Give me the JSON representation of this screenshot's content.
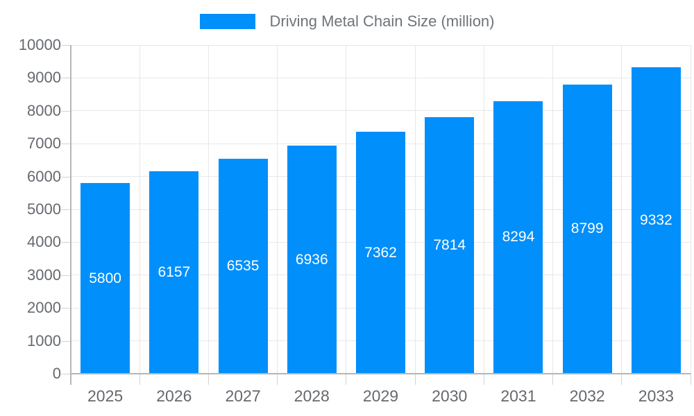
{
  "chart_data": {
    "type": "bar",
    "title": "",
    "xlabel": "",
    "ylabel": "",
    "legend": {
      "label": "Driving Metal Chain Size (million)",
      "position": "top"
    },
    "categories": [
      "2025",
      "2026",
      "2027",
      "2028",
      "2029",
      "2030",
      "2031",
      "2032",
      "2033"
    ],
    "values": [
      5800,
      6157,
      6535,
      6936,
      7362,
      7814,
      8294,
      8799,
      9332
    ],
    "ylim": [
      0,
      10000
    ],
    "ytick_step": 1000,
    "ytick_labels": [
      "0",
      "1000",
      "2000",
      "3000",
      "4000",
      "5000",
      "6000",
      "7000",
      "8000",
      "9000",
      "10000"
    ],
    "grid": "both",
    "colors": {
      "bar": "#008FFB",
      "value_label": "#FFFFFF",
      "axis_label": "#65696e",
      "legend_text": "#6e7479",
      "gridline": "#e7e7e7",
      "axis_line": "#b6b6b6",
      "tick": "#d2d2d2",
      "background": "#FFFFFF"
    }
  }
}
